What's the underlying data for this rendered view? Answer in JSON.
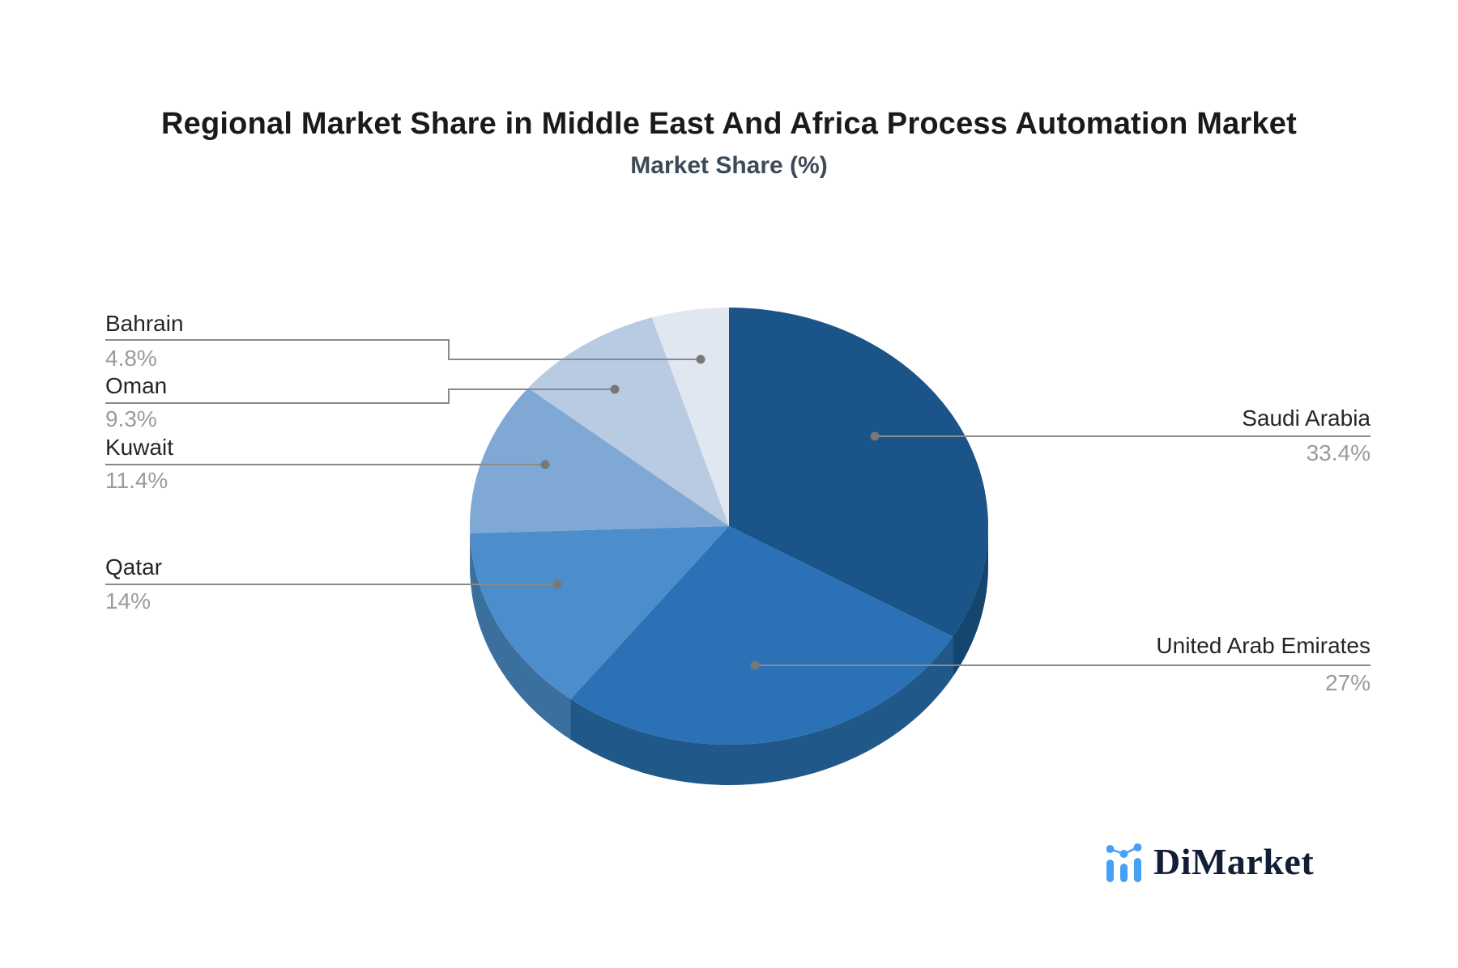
{
  "title": "Regional Market Share in Middle East And Africa Process Automation Market",
  "subtitle": "Market Share (%)",
  "chart_data": {
    "type": "pie",
    "style": "3d",
    "title": "Regional Market Share in Middle East And Africa Process Automation Market",
    "subtitle": "Market Share (%)",
    "legend": "none",
    "start_angle_deg": 0,
    "direction": "clockwise",
    "unit": "%",
    "series": [
      {
        "name": "Saudi Arabia",
        "value": 33.4,
        "display": "33.4%",
        "color": "#1a5488",
        "side_color": "#14466f"
      },
      {
        "name": "United Arab Emirates",
        "value": 27,
        "display": "27%",
        "color": "#2a72b5",
        "side_color": "#1f5889"
      },
      {
        "name": "Qatar",
        "value": 14,
        "display": "14%",
        "color": "#4b8ecb",
        "side_color": "#3a6f9e"
      },
      {
        "name": "Kuwait",
        "value": 11.4,
        "display": "11.4%",
        "color": "#7fa8d4",
        "side_color": "#627f9f"
      },
      {
        "name": "Oman",
        "value": 9.3,
        "display": "9.3%",
        "color": "#b9cbe2",
        "side_color": "#8e9aa9"
      },
      {
        "name": "Bahrain",
        "value": 4.8,
        "display": "4.8%",
        "color": "#e1e7f1",
        "side_color": "#abb0ba"
      }
    ]
  },
  "brand": {
    "name": "DiMarket",
    "icon_color": "#46a1f5",
    "text_color": "#121d36"
  },
  "colors": {
    "connector": "#8a8a8a",
    "dot": "#787878",
    "label_name": "#262626",
    "label_value": "#9b9b9b",
    "title": "#1a1a1a",
    "subtitle": "#3d4a57"
  }
}
